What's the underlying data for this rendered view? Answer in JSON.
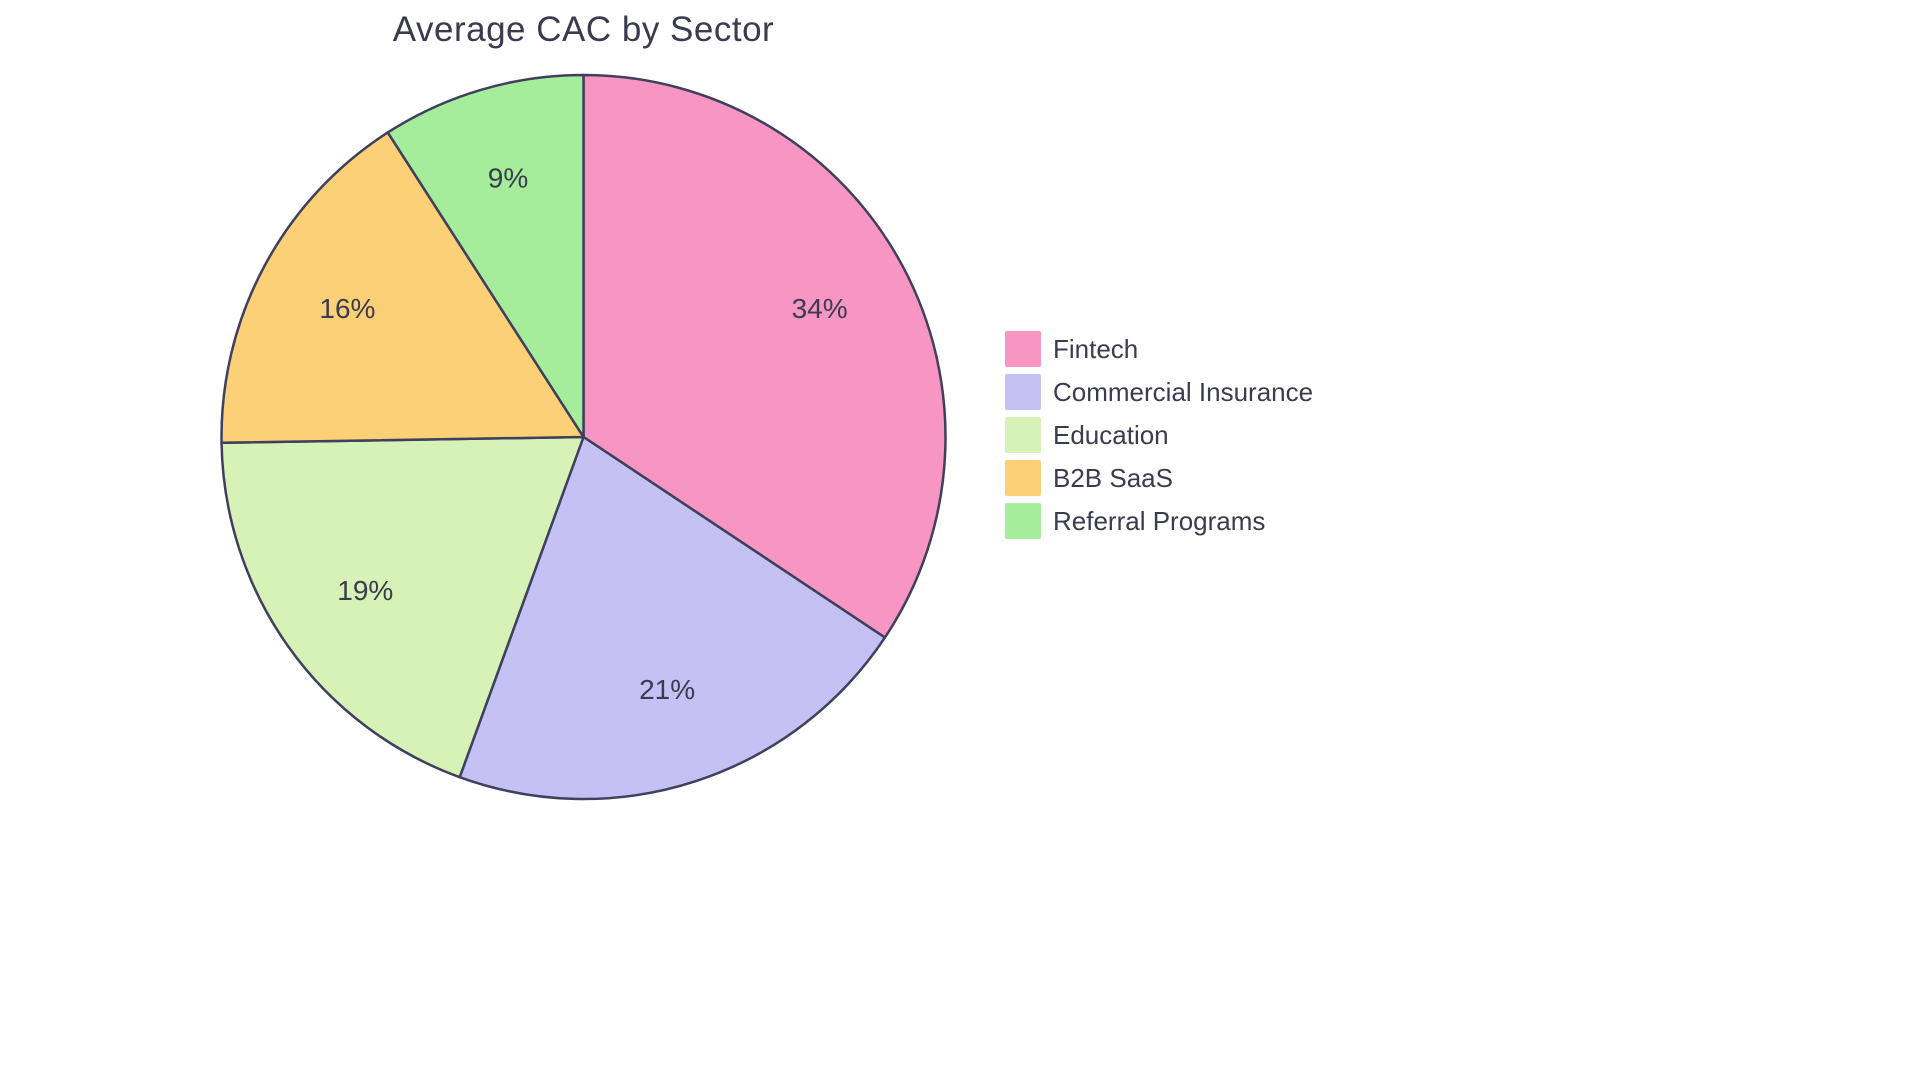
{
  "page": {
    "background": "#FFFFFF"
  },
  "chart_data": {
    "type": "pie",
    "title": "Average CAC by Sector",
    "slices": [
      {
        "label": "Fintech",
        "value": 34,
        "display": "34%",
        "color": "#F795C3"
      },
      {
        "label": "Commercial Insurance",
        "value": 21,
        "display": "21%",
        "color": "#C4C2F5"
      },
      {
        "label": "Education",
        "value": 19,
        "display": "19%",
        "color": "#D6F2B6"
      },
      {
        "label": "B2B SaaS",
        "value": 16,
        "display": "16%",
        "color": "#FBD077"
      },
      {
        "label": "Referral Programs",
        "value": 9,
        "display": "9%",
        "color": "#A5EC9B"
      }
    ],
    "start_angle_deg": 0,
    "direction": "clockwise",
    "legend_position": "right",
    "outline_color": "#3F3F5E",
    "label_color": "#3B3B4F",
    "label_font_size": 28
  }
}
